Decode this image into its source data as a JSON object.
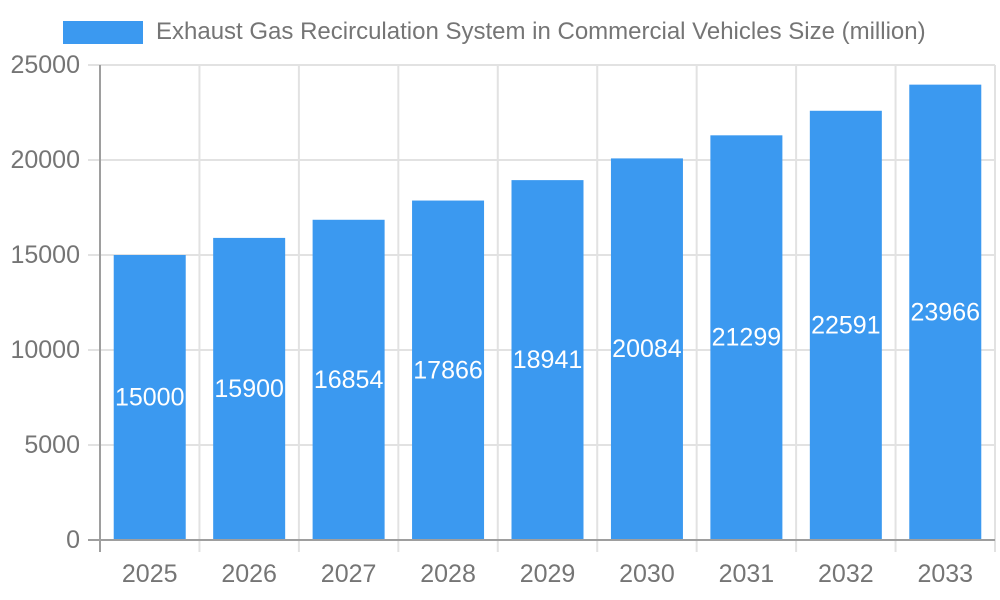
{
  "legend": {
    "label": "Exhaust Gas Recirculation System in Commercial Vehicles Size (million)",
    "swatch_color": "#3b99f0"
  },
  "chart_data": {
    "type": "bar",
    "title": "Exhaust Gas Recirculation System in Commercial Vehicles Size (million)",
    "categories": [
      "2025",
      "2026",
      "2027",
      "2028",
      "2029",
      "2030",
      "2031",
      "2032",
      "2033"
    ],
    "values": [
      15000,
      15900,
      16854,
      17866,
      18941,
      20084,
      21299,
      22591,
      23966
    ],
    "value_labels": [
      "15000",
      "15900",
      "16854",
      "17866",
      "18941",
      "20084",
      "21299",
      "22591",
      "23966"
    ],
    "xlabel": "",
    "ylabel": "",
    "ylim": [
      0,
      25000
    ],
    "ytick_step": 5000,
    "yticks": [
      0,
      5000,
      10000,
      15000,
      20000,
      25000
    ],
    "ytick_labels": [
      "0",
      "5000",
      "10000",
      "15000",
      "20000",
      "25000"
    ],
    "grid": true,
    "legend_position": "top-left",
    "colors": {
      "bar": "#3b99f0",
      "value_label": "#ffffff",
      "tick_label": "#757575",
      "axis_line": "#9e9e9e",
      "grid_line": "#e2e2e2",
      "background": "#ffffff"
    }
  }
}
